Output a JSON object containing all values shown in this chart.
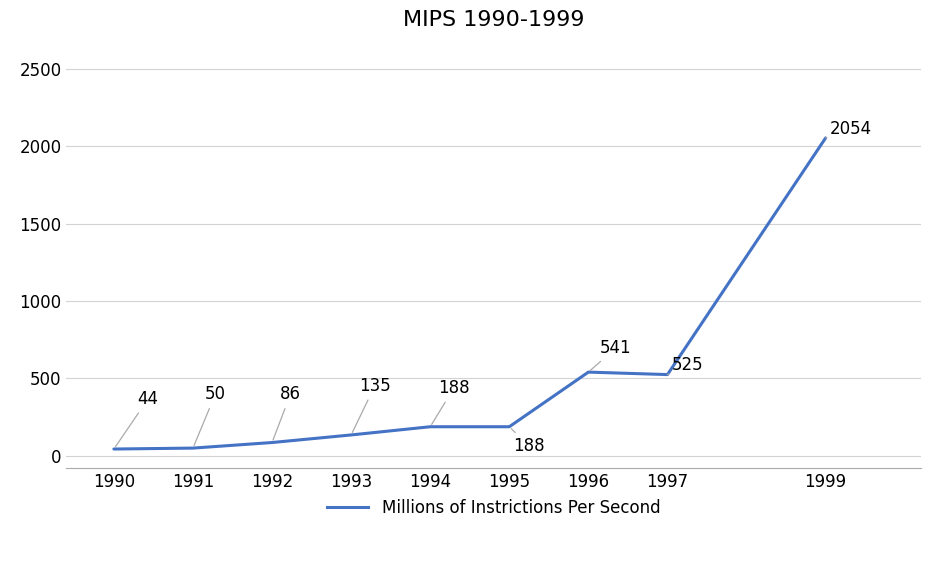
{
  "title": "MIPS 1990-1999",
  "years": [
    1990,
    1991,
    1992,
    1993,
    1994,
    1995,
    1996,
    1997,
    1999
  ],
  "values": [
    44,
    50,
    86,
    135,
    188,
    188,
    541,
    525,
    2054
  ],
  "line_color": "#4472C4",
  "line_width": 2.2,
  "ylabel_ticks": [
    0,
    500,
    1000,
    1500,
    2000,
    2500
  ],
  "ylim": [
    -80,
    2650
  ],
  "xlim": [
    1989.4,
    2000.2
  ],
  "background_color": "#ffffff",
  "grid_color": "#d3d3d3",
  "title_fontsize": 16,
  "label_fontsize": 12,
  "tick_fontsize": 12,
  "legend_label": "Millions of Instrictions Per Second",
  "annotations": [
    {
      "xi": 0,
      "xt": 1990.3,
      "yt": 310,
      "ha": "left",
      "va": "bottom"
    },
    {
      "xi": 1,
      "xt": 1991.15,
      "yt": 340,
      "ha": "left",
      "va": "bottom"
    },
    {
      "xi": 2,
      "xt": 1992.1,
      "yt": 340,
      "ha": "left",
      "va": "bottom"
    },
    {
      "xi": 3,
      "xt": 1993.1,
      "yt": 395,
      "ha": "left",
      "va": "bottom"
    },
    {
      "xi": 4,
      "xt": 1994.1,
      "yt": 380,
      "ha": "left",
      "va": "bottom"
    },
    {
      "xi": 5,
      "xt": 1995.05,
      "yt": 120,
      "ha": "left",
      "va": "top"
    },
    {
      "xi": 6,
      "xt": 1996.15,
      "yt": 640,
      "ha": "left",
      "va": "bottom"
    },
    {
      "xi": 7,
      "xt": 1997.05,
      "yt": 530,
      "ha": "left",
      "va": "bottom"
    },
    {
      "xi": 8,
      "xt": 1999.05,
      "yt": 2054,
      "ha": "left",
      "va": "bottom"
    }
  ]
}
